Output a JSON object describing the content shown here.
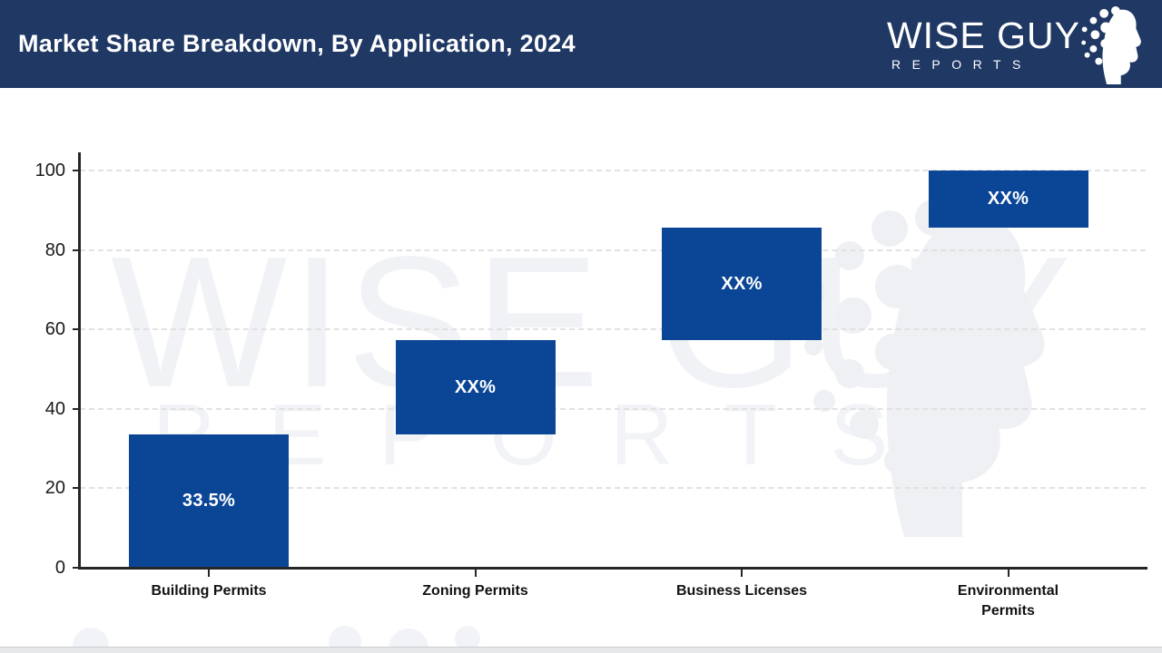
{
  "header": {
    "title": "Market Share Breakdown, By Application, 2024",
    "bg_color": "#1f3864",
    "logo": {
      "line1": "WISE GUY",
      "line2": "REPORTS"
    }
  },
  "watermark": {
    "line1": "WISE GUY",
    "line2": "REPORTS"
  },
  "chart_data": {
    "type": "bar",
    "subtype": "waterfall",
    "title": "Market Share Breakdown, By Application, 2024",
    "categories": [
      "Building Permits",
      "Zoning Permits",
      "Business Licenses",
      "Environmental Permits"
    ],
    "series": [
      {
        "name": "Market Share",
        "segments": [
          {
            "category": "Building Permits",
            "start": 0,
            "end": 33.5,
            "label": "33.5%"
          },
          {
            "category": "Zoning Permits",
            "start": 33.5,
            "end": 57.3,
            "label": "XX%"
          },
          {
            "category": "Business Licenses",
            "start": 57.3,
            "end": 85.6,
            "label": "XX%"
          },
          {
            "category": "Environmental Permits",
            "start": 85.6,
            "end": 100,
            "label": "XX%"
          }
        ]
      }
    ],
    "bar_color": "#0a4596",
    "label_color": "#ffffff",
    "ylim": [
      0,
      100
    ],
    "yticks": [
      0,
      20,
      40,
      60,
      80,
      100
    ],
    "xlabel": "",
    "ylabel": "",
    "grid": "horizontal-dashed",
    "legend": "none"
  }
}
